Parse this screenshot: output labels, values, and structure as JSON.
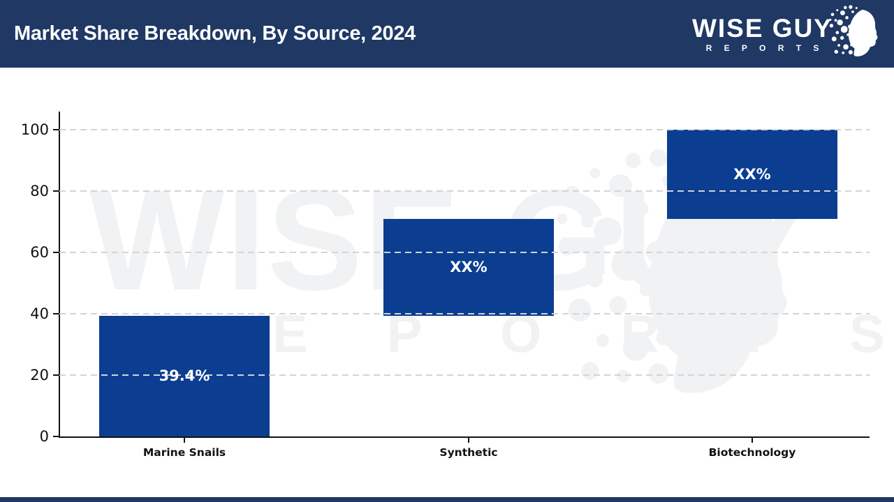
{
  "header": {
    "title": "Market Share Breakdown, By Source, 2024",
    "logo": {
      "line1": "WISE GUY",
      "line2": "R E P O R T S"
    }
  },
  "watermark": {
    "line1": "WISE GUY",
    "line2": "R E P O R T S"
  },
  "colors": {
    "header_bg": "#1f3864",
    "footer_bg": "#1f3864",
    "bar": "#0b3d91",
    "grid": "#d4d4d4",
    "axis": "#111111",
    "bar_label": "#ffffff",
    "watermark": "#f1f2f4"
  },
  "chart_data": {
    "type": "bar",
    "subtype": "waterfall",
    "title": "Market Share Breakdown, By Source, 2024",
    "categories": [
      "Marine Snails",
      "Synthetic",
      "Biotechnology"
    ],
    "series": [
      {
        "name": "Market Share (%)",
        "segments": [
          {
            "category": "Marine Snails",
            "start": 0,
            "end": 39.4,
            "label": "39.4%"
          },
          {
            "category": "Synthetic",
            "start": 39.4,
            "end": 70.9,
            "label": "XX%"
          },
          {
            "category": "Biotechnology",
            "start": 70.9,
            "end": 100,
            "label": "XX%"
          }
        ]
      }
    ],
    "xlabel": "",
    "ylabel": "",
    "ylim": [
      0,
      100
    ],
    "yticks": [
      0,
      20,
      40,
      60,
      80,
      100
    ],
    "grid": "horizontal-dashed",
    "legend": "none",
    "value_labels": [
      "39.4%",
      "XX%",
      "XX%"
    ]
  }
}
